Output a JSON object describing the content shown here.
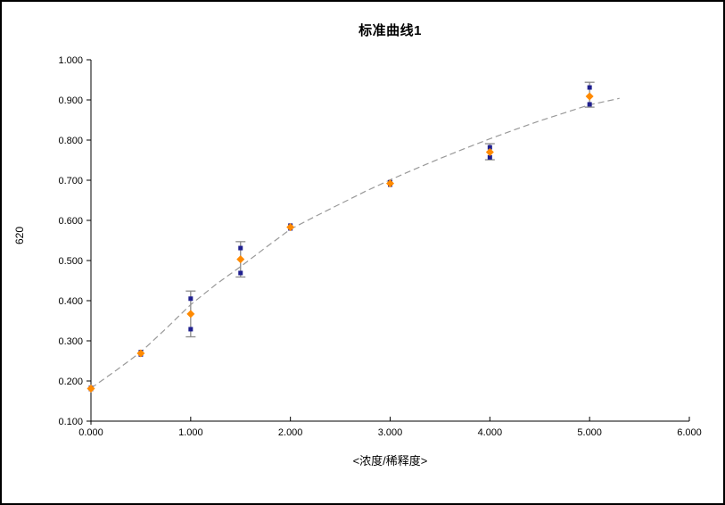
{
  "window": {
    "background": "#ffffff",
    "frame_color": "#000000"
  },
  "chart_data": {
    "type": "scatter",
    "title": "标准曲线1",
    "xlabel": "<浓度/稀释度>",
    "ylabel": "620",
    "xlim": [
      0,
      6
    ],
    "ylim": [
      0.1,
      1.0
    ],
    "grid": false,
    "legend": false,
    "axis_color": "#000000",
    "x_ticks": [
      0,
      1,
      2,
      3,
      4,
      5,
      6
    ],
    "x_tick_labels": [
      "0.000",
      "1.000",
      "2.000",
      "3.000",
      "4.000",
      "5.000",
      "6.000"
    ],
    "y_ticks": [
      0.1,
      0.2,
      0.3,
      0.4,
      0.5,
      0.6,
      0.7,
      0.8,
      0.9,
      1.0
    ],
    "y_tick_labels": [
      "0.100",
      "0.200",
      "0.300",
      "0.400",
      "0.500",
      "0.600",
      "0.700",
      "0.800",
      "0.900",
      "1.000"
    ],
    "series": [
      {
        "name": "error-bars",
        "type": "errorbar",
        "color": "#8c8c8c",
        "bars": [
          {
            "x": 1.0,
            "low": 0.31,
            "high": 0.424
          },
          {
            "x": 1.5,
            "low": 0.459,
            "high": 0.547
          },
          {
            "x": 4.0,
            "low": 0.751,
            "high": 0.791
          },
          {
            "x": 5.0,
            "low": 0.882,
            "high": 0.944
          }
        ]
      },
      {
        "name": "fit-curve",
        "type": "line",
        "style": "dashed",
        "color": "#999999",
        "points": [
          [
            0,
            0.182
          ],
          [
            0.25,
            0.226
          ],
          [
            0.5,
            0.272
          ],
          [
            0.75,
            0.33
          ],
          [
            1.0,
            0.39
          ],
          [
            1.25,
            0.44
          ],
          [
            1.5,
            0.485
          ],
          [
            1.75,
            0.532
          ],
          [
            2.0,
            0.578
          ],
          [
            2.25,
            0.61
          ],
          [
            2.5,
            0.641
          ],
          [
            2.75,
            0.672
          ],
          [
            3.0,
            0.701
          ],
          [
            3.25,
            0.728
          ],
          [
            3.5,
            0.754
          ],
          [
            3.75,
            0.779
          ],
          [
            4.0,
            0.803
          ],
          [
            4.25,
            0.826
          ],
          [
            4.5,
            0.848
          ],
          [
            4.75,
            0.868
          ],
          [
            5.0,
            0.888
          ],
          [
            5.25,
            0.901
          ],
          [
            5.3,
            0.904
          ]
        ]
      },
      {
        "name": "replicates",
        "type": "scatter",
        "marker": "square",
        "color": "#1f1f8f",
        "points": [
          [
            0,
            0.183
          ],
          [
            0,
            0.18
          ],
          [
            0.5,
            0.272
          ],
          [
            0.5,
            0.266
          ],
          [
            1.0,
            0.405
          ],
          [
            1.0,
            0.329
          ],
          [
            1.5,
            0.531
          ],
          [
            1.5,
            0.469
          ],
          [
            2.0,
            0.587
          ],
          [
            2.0,
            0.58
          ],
          [
            3.0,
            0.695
          ],
          [
            3.0,
            0.689
          ],
          [
            4.0,
            0.782
          ],
          [
            4.0,
            0.757
          ],
          [
            5.0,
            0.931
          ],
          [
            5.0,
            0.889
          ]
        ]
      },
      {
        "name": "means",
        "type": "scatter",
        "marker": "diamond",
        "color": "#ff8a00",
        "points": [
          [
            0,
            0.181
          ],
          [
            0.5,
            0.269
          ],
          [
            1.0,
            0.367
          ],
          [
            1.5,
            0.503
          ],
          [
            2.0,
            0.583
          ],
          [
            3.0,
            0.692
          ],
          [
            4.0,
            0.77
          ],
          [
            5.0,
            0.909
          ]
        ]
      }
    ]
  }
}
